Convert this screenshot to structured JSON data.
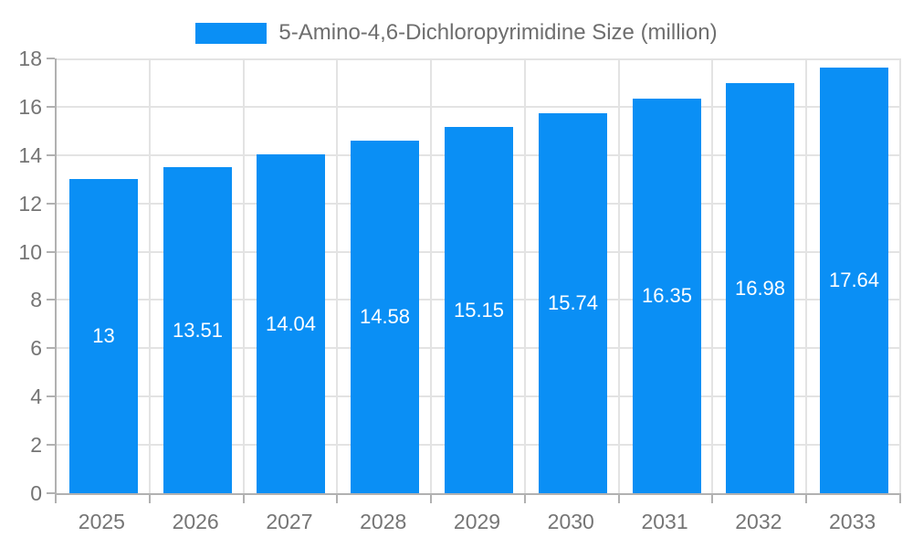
{
  "legend": {
    "label": "5-Amino-4,6-Dichloropyrimidine Size (million)"
  },
  "colors": {
    "bar": "#0a8ff5",
    "axis": "#b1b1b1",
    "grid": "#e3e3e3",
    "axis_label_text": "#757575",
    "legend_text": "#6e6e6e",
    "value_label_text": "#ffffff",
    "background": "#ffffff"
  },
  "chart_data": {
    "type": "bar",
    "title": "5-Amino-4,6-Dichloropyrimidine Size (million)",
    "series_name": "5-Amino-4,6-Dichloropyrimidine Size (million)",
    "categories": [
      "2025",
      "2026",
      "2027",
      "2028",
      "2029",
      "2030",
      "2031",
      "2032",
      "2033"
    ],
    "values": [
      13,
      13.51,
      14.04,
      14.58,
      15.15,
      15.74,
      16.35,
      16.98,
      17.64
    ],
    "value_labels": [
      "13",
      "13.51",
      "14.04",
      "14.58",
      "15.15",
      "15.74",
      "16.35",
      "16.98",
      "17.64"
    ],
    "xlabel": "",
    "ylabel": "",
    "ylim": [
      0,
      18
    ],
    "yticks": [
      0,
      2,
      4,
      6,
      8,
      10,
      12,
      14,
      16,
      18
    ],
    "grid": true,
    "legend_position": "top"
  }
}
